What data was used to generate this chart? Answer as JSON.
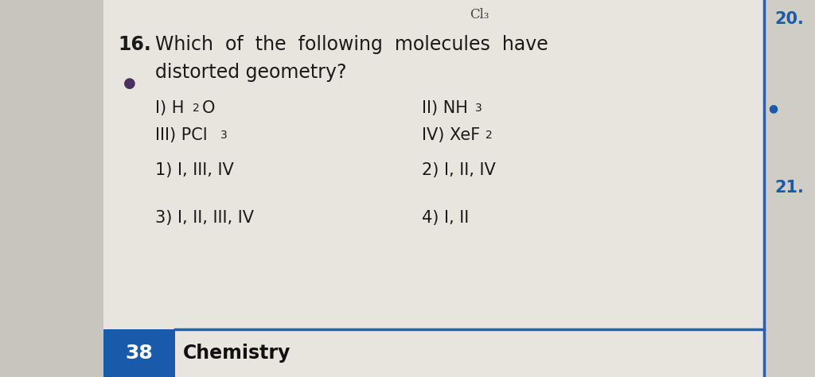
{
  "bg_left": "#c8c4be",
  "bg_main": "#e8e5df",
  "bg_right": "#d0ccc6",
  "title_number": "16.",
  "bullet_color": "#4a3060",
  "footer_box_color": "#1a5aaa",
  "footer_text": "38",
  "footer_label": "Chemistry",
  "right_number_color": "#1a5aaa",
  "right_numbers": [
    "20.",
    "21."
  ],
  "right_bullet": "●",
  "right_bullet_color": "#1a5aaa",
  "line_color": "#2060c0",
  "top_remnant": "Cl₃",
  "text_color": "#1a1a1a"
}
